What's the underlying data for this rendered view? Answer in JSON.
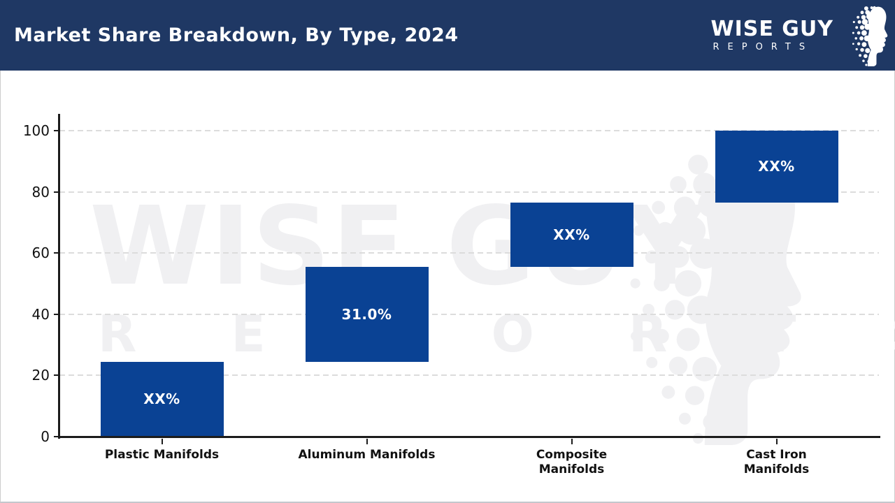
{
  "header": {
    "title": "Market Share Breakdown, By Type, 2024",
    "logo": {
      "wordmark": "WISE GUY",
      "subtitle": "REPORTS"
    },
    "colors": {
      "background": "#1f3864",
      "text": "#ffffff"
    }
  },
  "watermark": {
    "wordmark": "WISE GUY",
    "subtitle": "R E P O R T S"
  },
  "chart_data": {
    "type": "bar",
    "subtype": "floating-waterfall",
    "title": "Market Share Breakdown, By Type, 2024",
    "unit": "%",
    "categories": [
      "Plastic Manifolds",
      "Aluminum Manifolds",
      "Composite Manifolds",
      "Cast Iron Manifolds"
    ],
    "series": [
      {
        "name": "Market Share",
        "segments": [
          {
            "category": "Plastic Manifolds",
            "tick_label": "Plastic Manifolds",
            "start": 0,
            "end": 24.5,
            "value_label": "XX%"
          },
          {
            "category": "Aluminum Manifolds",
            "tick_label": "Aluminum Manifolds",
            "start": 24.5,
            "end": 55.5,
            "value": 31.0,
            "value_label": "31.0%"
          },
          {
            "category": "Composite Manifolds",
            "tick_label": "Composite\nManifolds",
            "start": 55.5,
            "end": 76.5,
            "value_label": "XX%"
          },
          {
            "category": "Cast Iron Manifolds",
            "tick_label": "Cast Iron\nManifolds",
            "start": 76.5,
            "end": 100,
            "value_label": "XX%"
          }
        ]
      }
    ],
    "ylim": [
      0,
      100
    ],
    "yticks": [
      0,
      20,
      40,
      60,
      80,
      100
    ],
    "xlabel": "",
    "ylabel": "",
    "grid": "horizontal-dashed",
    "legend": "none",
    "colors": {
      "bar": "#0a4294",
      "bar_label": "#ffffff",
      "axis": "#1c1c1c",
      "gridline": "#dcdcdc",
      "tick_text": "#111111",
      "watermark": "#f0f0f2"
    }
  }
}
